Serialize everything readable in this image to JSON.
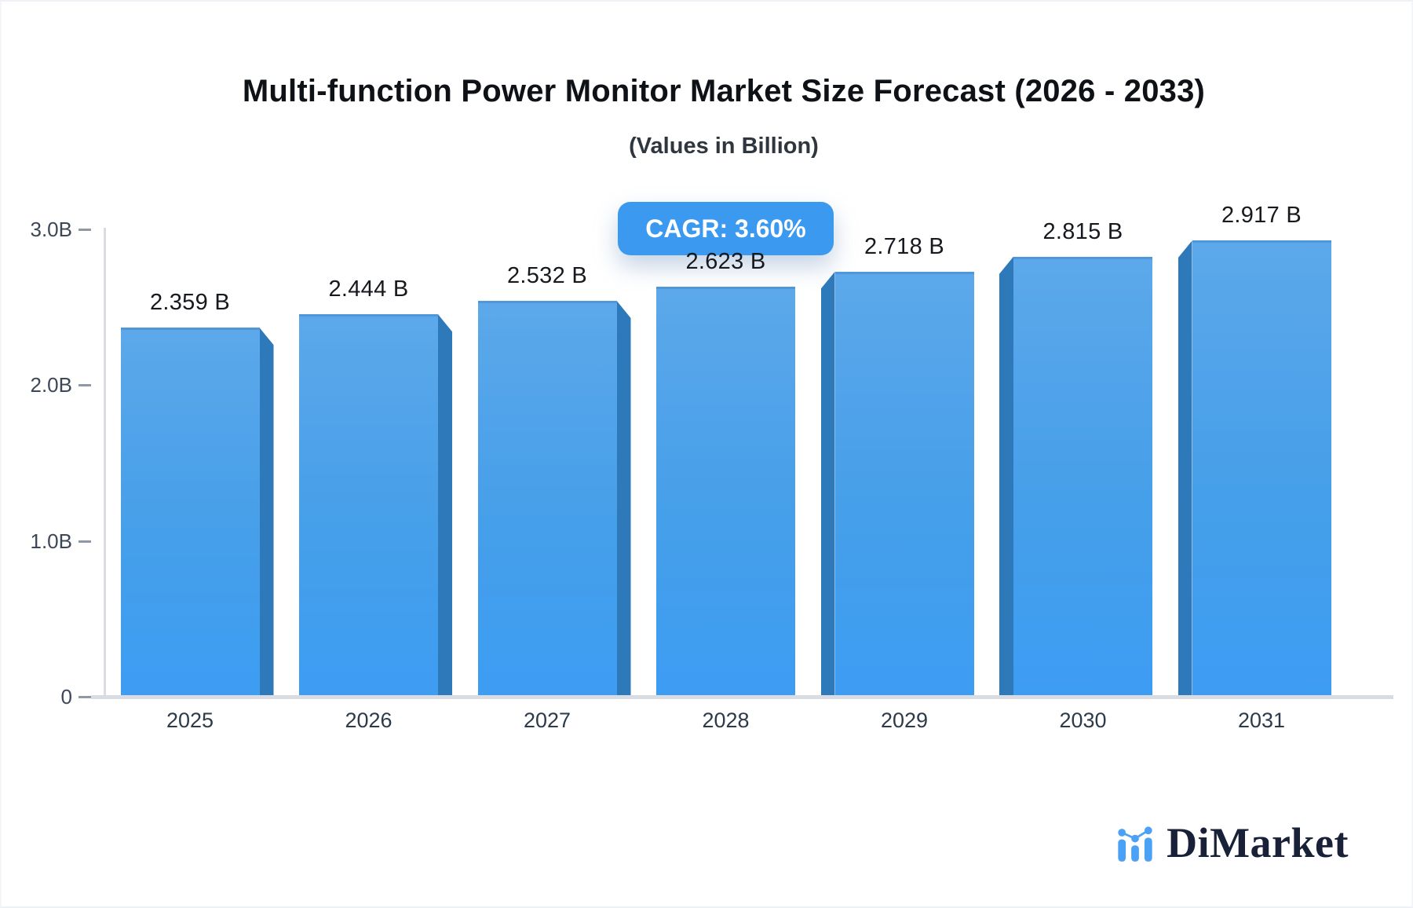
{
  "title": "Multi-function Power Monitor Market Size Forecast (2026 - 2033)",
  "subtitle": "(Values in Billion)",
  "badge": {
    "label": "CAGR: 3.60%"
  },
  "chart_data": {
    "type": "bar",
    "categories": [
      "2025",
      "2026",
      "2027",
      "2028",
      "2029",
      "2030",
      "2031"
    ],
    "values": [
      2.359,
      2.444,
      2.532,
      2.623,
      2.718,
      2.815,
      2.917
    ],
    "value_labels": [
      "2.359 B",
      "2.444 B",
      "2.532 B",
      "2.623 B",
      "2.718 B",
      "2.815 B",
      "2.917 B"
    ],
    "title": "Multi-function Power Monitor Market Size Forecast (2026 - 2033)",
    "xlabel": "",
    "ylabel": "",
    "ylim": [
      0,
      3.0
    ],
    "yticks": [
      {
        "value": 0,
        "label": "0"
      },
      {
        "value": 1.0,
        "label": "1.0B"
      },
      {
        "value": 2.0,
        "label": "2.0B"
      },
      {
        "value": 3.0,
        "label": "3.0B"
      }
    ],
    "grid": false,
    "legend": false,
    "bar_3d_sides": [
      "right",
      "right",
      "right",
      "none",
      "left",
      "left",
      "left"
    ]
  },
  "logo": {
    "text": "DiMarket",
    "icon": "dimarket-logo-icon"
  },
  "colors": {
    "badge_bg": "#3B99F0",
    "bar_face_top": "#5CA8EA",
    "bar_face_bottom": "#3D9DF3",
    "bar_side": "#2E79BA",
    "axis": "#D9DDE3",
    "tick_dash": "#8F99A6",
    "tick_label": "#3E4756",
    "title": "#0E1116",
    "subtitle": "#30363E",
    "value_label": "#16191D",
    "year_label": "#2D3A4A",
    "logo_navy": "#182138",
    "logo_blue": "#4BA1F5"
  }
}
